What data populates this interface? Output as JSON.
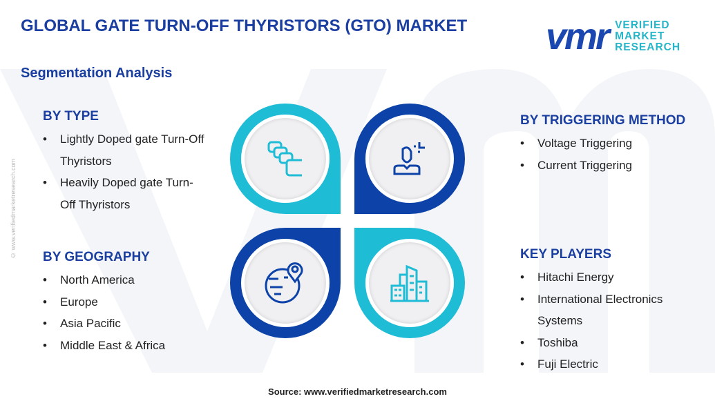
{
  "header": {
    "title": "GLOBAL GATE TURN-OFF THYRISTORS (GTO) MARKET",
    "subtitle": "Segmentation Analysis"
  },
  "logo": {
    "mark": "vmr",
    "line1": "VERIFIED",
    "line2": "MARKET",
    "line3": "RESEARCH"
  },
  "side_text": "© www.verifiedmarketresearch.com",
  "sections": {
    "type": {
      "heading": "BY TYPE",
      "items": [
        "Lightly Doped gate Turn-Off Thyristors",
        "Heavily Doped gate Turn-Off Thyristors"
      ]
    },
    "geography": {
      "heading": "BY GEOGRAPHY",
      "items": [
        "North America",
        "Europe",
        "Asia Pacific",
        "Middle East & Africa"
      ]
    },
    "triggering": {
      "heading": "BY TRIGGERING METHOD",
      "items": [
        "Voltage Triggering",
        "Current Triggering"
      ]
    },
    "players": {
      "heading": "KEY PLAYERS",
      "items": [
        "Hitachi Energy",
        "International Electronics Systems",
        "Toshiba",
        "Fuji Electric"
      ]
    }
  },
  "icons": [
    "layers-icon",
    "person-icon",
    "globe-location-icon",
    "buildings-icon"
  ],
  "colors": {
    "primary": "#0d43a8",
    "accent": "#1fbcd6"
  },
  "footer": {
    "source": "Source: www.verifiedmarketresearch.com"
  }
}
